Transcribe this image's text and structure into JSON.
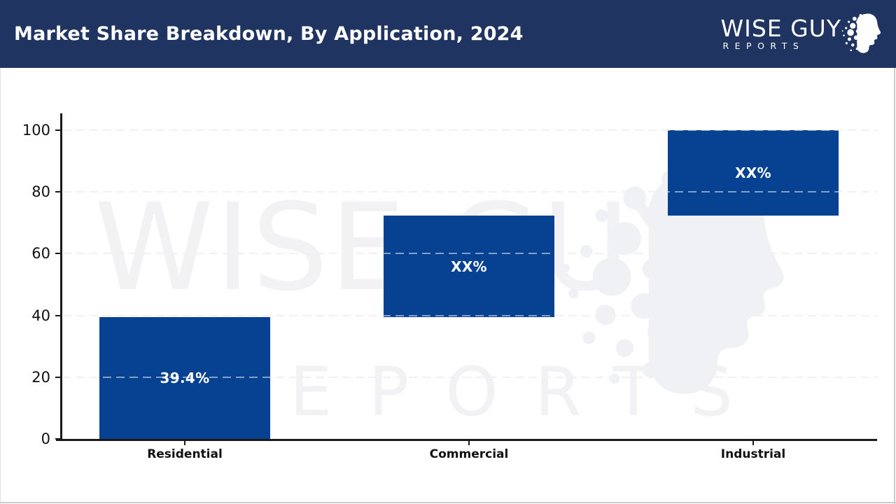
{
  "header": {
    "title": "Market Share Breakdown, By Application, 2024",
    "bg_color": "#1f3461",
    "logo": {
      "line1": "WISE GUY",
      "line2": "REPORTS"
    }
  },
  "watermark": {
    "line1": "WISE GUY",
    "line2": "REPORTS"
  },
  "chart_data": {
    "type": "bar",
    "subtype": "floating-segment percentage bars (waterfall style)",
    "title": "Market Share Breakdown, By Application, 2024",
    "categories": [
      "Residential",
      "Commercial",
      "Industrial"
    ],
    "bars": [
      {
        "category": "Residential",
        "start": 0,
        "end": 39.4,
        "label": "39.4%"
      },
      {
        "category": "Commercial",
        "start": 39.4,
        "end": 72.3,
        "label": "XX%"
      },
      {
        "category": "Industrial",
        "start": 72.3,
        "end": 100,
        "label": "XX%"
      }
    ],
    "ylim": [
      0,
      100
    ],
    "yticks": [
      0,
      20,
      40,
      60,
      80,
      100
    ],
    "xlabel": "",
    "ylabel": "",
    "grid": "horizontal dashed",
    "legend": "none",
    "bar_color": "#064291",
    "value_label_color": "#ffffff",
    "axis_color": "#1a1a1a"
  }
}
